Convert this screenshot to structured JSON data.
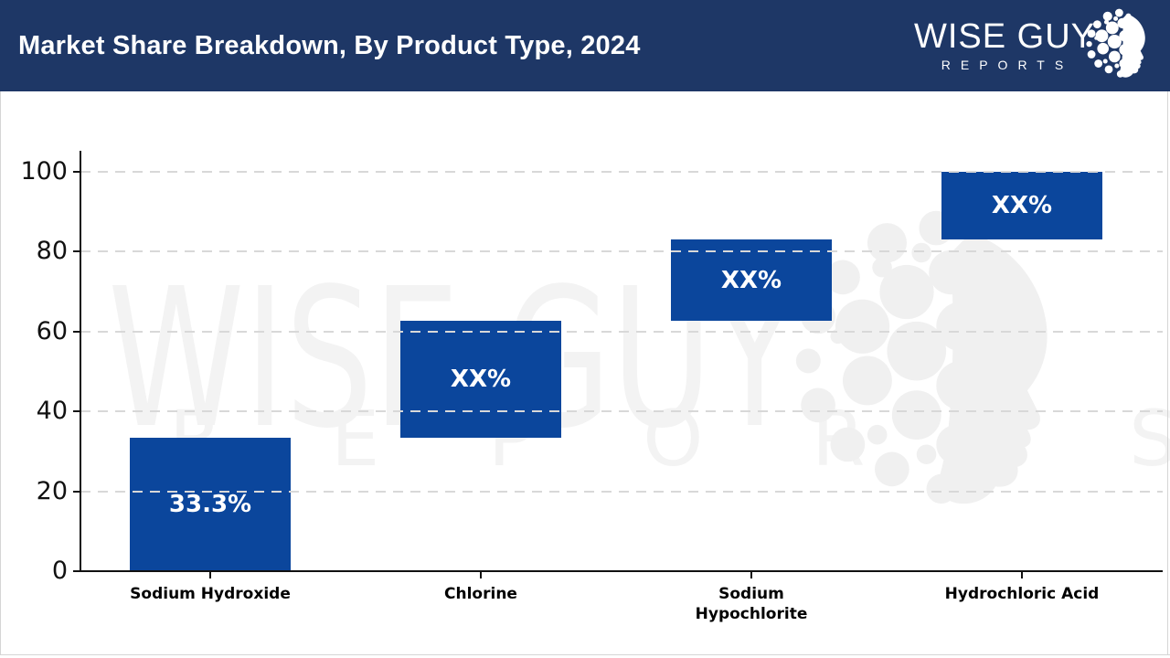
{
  "header": {
    "title": "Market Share Breakdown, By Product Type, 2024",
    "logo": {
      "name": "WISE GUY",
      "subtitle": "REPORTS"
    }
  },
  "watermark": {
    "line1": "WISE GUY",
    "line2": "R E P O R T S"
  },
  "colors": {
    "header_bg": "#1e3766",
    "bar": "#0b469c",
    "bar_label": "#ffffff",
    "gridline": "#d8d8d8",
    "axis": "#111111",
    "watermark": "#f3f3f3"
  },
  "chart_data": {
    "type": "bar",
    "subtype": "waterfall",
    "title": "Market Share Breakdown, By Product Type, 2024",
    "categories": [
      "Sodium Hydroxide",
      "Chlorine",
      "Sodium Hypochlorite",
      "Hydrochloric Acid"
    ],
    "segments": [
      {
        "category": "Sodium Hydroxide",
        "display_lines": [
          "Sodium Hydroxide"
        ],
        "start": 0,
        "end": 33.3,
        "label": "33.3%"
      },
      {
        "category": "Chlorine",
        "display_lines": [
          "Chlorine"
        ],
        "start": 33.3,
        "end": 62.6,
        "label": "XX%"
      },
      {
        "category": "Sodium Hypochlorite",
        "display_lines": [
          "Sodium",
          "Hypochlorite"
        ],
        "start": 62.6,
        "end": 82.9,
        "label": "XX%"
      },
      {
        "category": "Hydrochloric Acid",
        "display_lines": [
          "Hydrochloric Acid"
        ],
        "start": 82.9,
        "end": 100,
        "label": "XX%"
      }
    ],
    "y_ticks": [
      0,
      20,
      40,
      60,
      80,
      100
    ],
    "ylim": [
      0,
      100
    ],
    "xlabel": "",
    "ylabel": "",
    "grid": "horizontal-dashed",
    "legend": "none"
  }
}
